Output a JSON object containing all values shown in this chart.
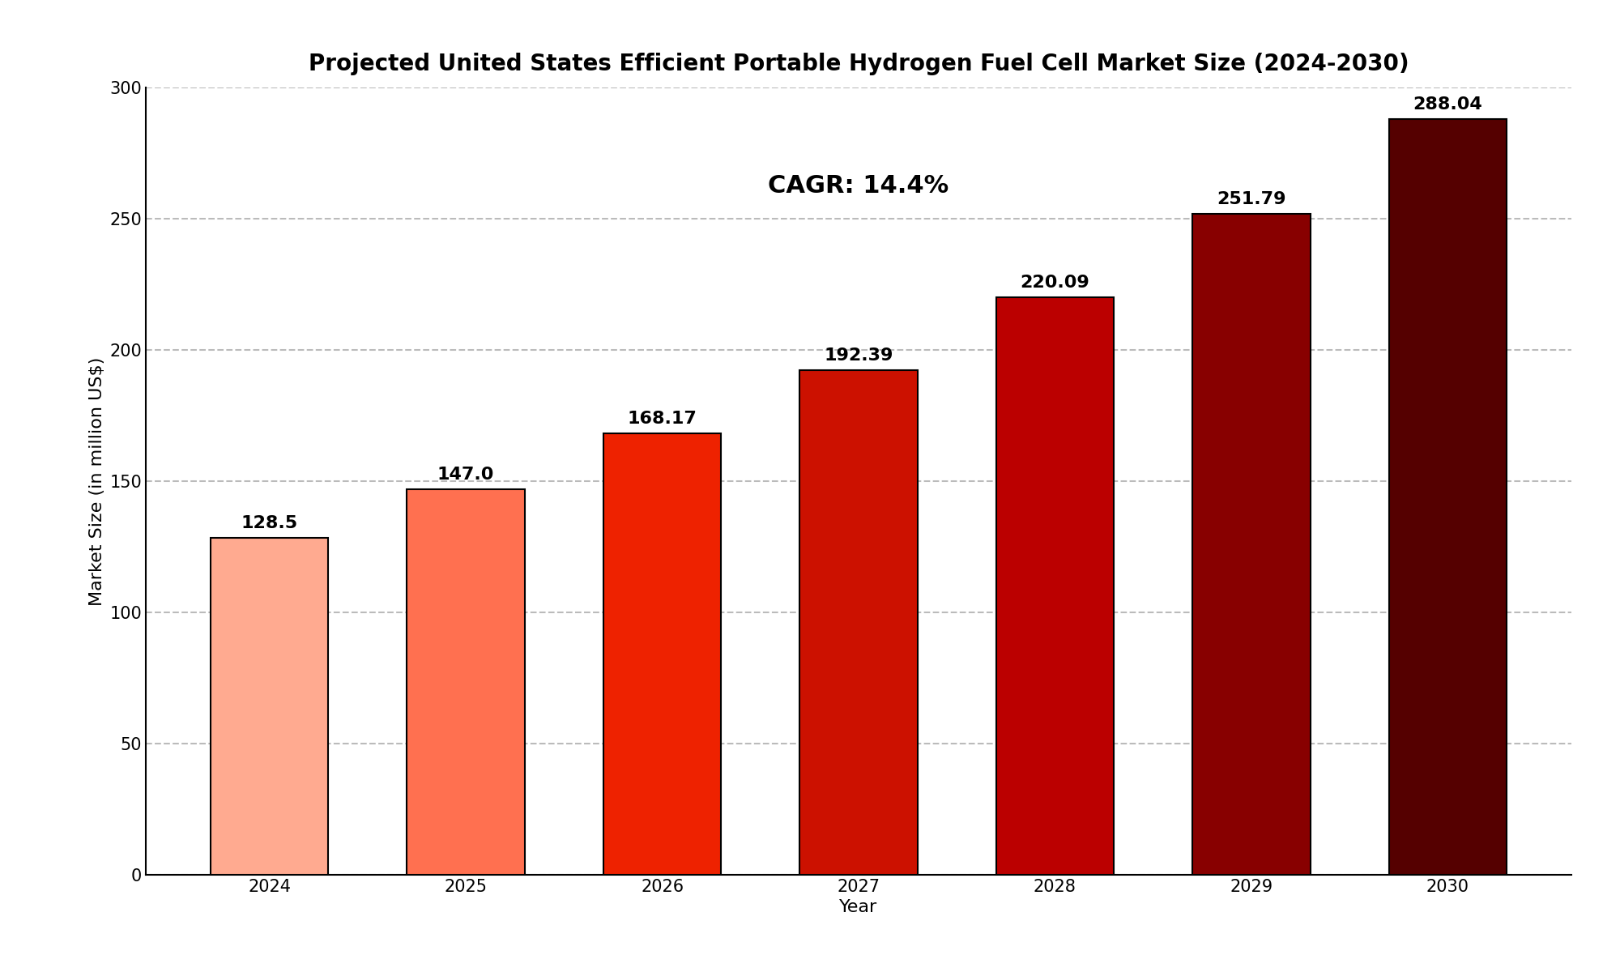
{
  "title": "Projected United States Efficient Portable Hydrogen Fuel Cell Market Size (2024-2030)",
  "xlabel": "Year",
  "ylabel": "Market Size (in million US$)",
  "years": [
    2024,
    2025,
    2026,
    2027,
    2028,
    2029,
    2030
  ],
  "values": [
    128.5,
    147.0,
    168.17,
    192.39,
    220.09,
    251.79,
    288.04
  ],
  "bar_colors": [
    "#FFAA90",
    "#FF7050",
    "#EE2200",
    "#CC1100",
    "#BB0000",
    "#880000",
    "#550000"
  ],
  "cagr_text": "CAGR: 14.4%",
  "ylim": [
    0,
    300
  ],
  "yticks": [
    0,
    50,
    100,
    150,
    200,
    250,
    300
  ],
  "background_color": "#ffffff",
  "grid_color": "#bbbbbb",
  "title_fontsize": 20,
  "label_fontsize": 16,
  "tick_fontsize": 15,
  "bar_label_fontsize": 16,
  "cagr_fontsize": 22,
  "bar_edge_color": "#000000",
  "bar_edge_width": 1.5,
  "bar_width": 0.6
}
